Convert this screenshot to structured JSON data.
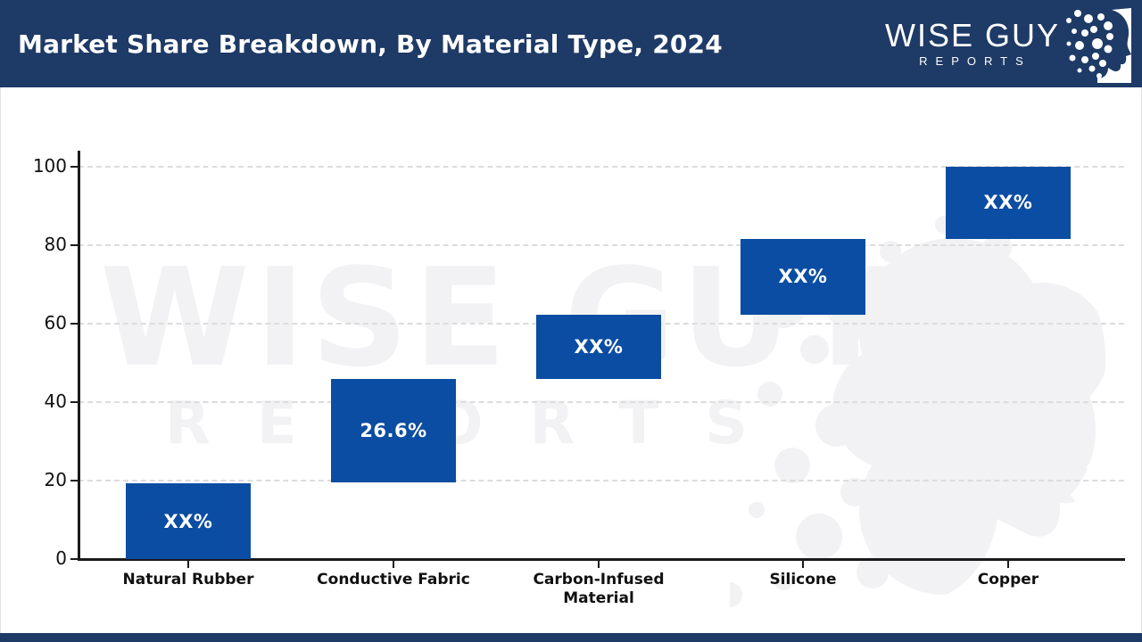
{
  "header": {
    "title": "Market Share Breakdown, By Material Type, 2024",
    "logo": {
      "line1": "WISE GUY",
      "line2": "REPORTS"
    }
  },
  "watermark": {
    "line1": "WISE GUY",
    "line2": "REPORTS"
  },
  "colors": {
    "header_bg": "#1e3a66",
    "bar": "#0b4da2",
    "grid": "#dcdcdc",
    "watermark": "#f2f2f4",
    "axis": "#1a1a1a",
    "bar_label_text": "#ffffff"
  },
  "chart_data": {
    "type": "bar",
    "subtype": "floating-waterfall",
    "title": "Market Share Breakdown, By Material Type, 2024",
    "xlabel": "",
    "ylabel": "",
    "ylim": [
      0,
      104
    ],
    "yticks": [
      0,
      20,
      40,
      60,
      80,
      100
    ],
    "grid": "horizontal-dashed",
    "legend": "none",
    "categories": [
      "Natural Rubber",
      "Conductive Fabric",
      "Carbon-Infused Material",
      "Silicone",
      "Copper"
    ],
    "segments": [
      {
        "category": "Natural Rubber",
        "start": 0,
        "end": 19.3,
        "label": "XX%"
      },
      {
        "category": "Conductive Fabric",
        "start": 19.5,
        "end": 45.9,
        "label": "26.6%"
      },
      {
        "category": "Carbon-Infused Material",
        "start": 45.9,
        "end": 62.2,
        "label": "XX%"
      },
      {
        "category": "Silicone",
        "start": 62.3,
        "end": 81.7,
        "label": "XX%"
      },
      {
        "category": "Copper",
        "start": 81.7,
        "end": 100,
        "label": "XX%"
      }
    ]
  }
}
